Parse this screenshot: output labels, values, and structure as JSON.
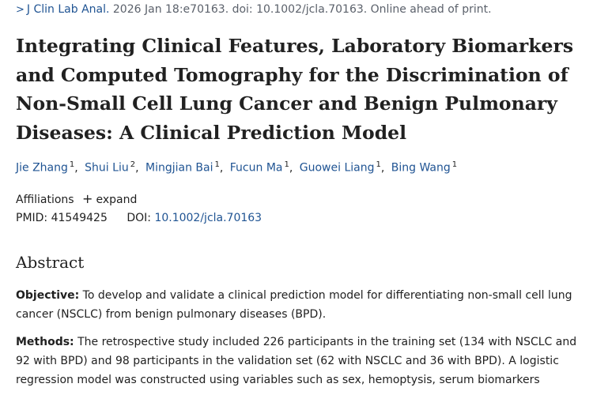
{
  "citation": {
    "chevron": ">",
    "journal": "J Clin Lab Anal.",
    "details": " 2026 Jan 18:e70163. doi: 10.1002/jcla.70163. Online ahead of print."
  },
  "title": "Integrating Clinical Features, Laboratory Biomarkers and Computed Tomography for the Discrimination of Non-Small Cell Lung Cancer and Benign Pulmonary Diseases: A Clinical Prediction Model",
  "authors": [
    {
      "name": "Jie Zhang",
      "sup": "1"
    },
    {
      "name": "Shui Liu",
      "sup": "2"
    },
    {
      "name": "Mingjian Bai",
      "sup": "1"
    },
    {
      "name": "Fucun Ma",
      "sup": "1"
    },
    {
      "name": "Guowei Liang",
      "sup": "1"
    },
    {
      "name": "Bing Wang",
      "sup": "1"
    }
  ],
  "affiliations": {
    "label": "Affiliations",
    "expand_icon": "+",
    "expand_label": "expand"
  },
  "ids": {
    "pmid_label": "PMID:",
    "pmid": "41549425",
    "doi_label": "DOI:",
    "doi": "10.1002/jcla.70163"
  },
  "abstract": {
    "heading": "Abstract",
    "objective_label": "Objective:",
    "objective_text": " To develop and validate a clinical prediction model for differentiating non-small cell lung cancer (NSCLC) from benign pulmonary diseases (BPD).",
    "methods_label": "Methods:",
    "methods_text": " The retrospective study included 226 participants in the training set (134 with NSCLC and 92 with BPD) and 98 participants in the validation set (62 with NSCLC and 36 with BPD). A logistic regression model was constructed using variables such as sex, hemoptysis, serum biomarkers"
  }
}
